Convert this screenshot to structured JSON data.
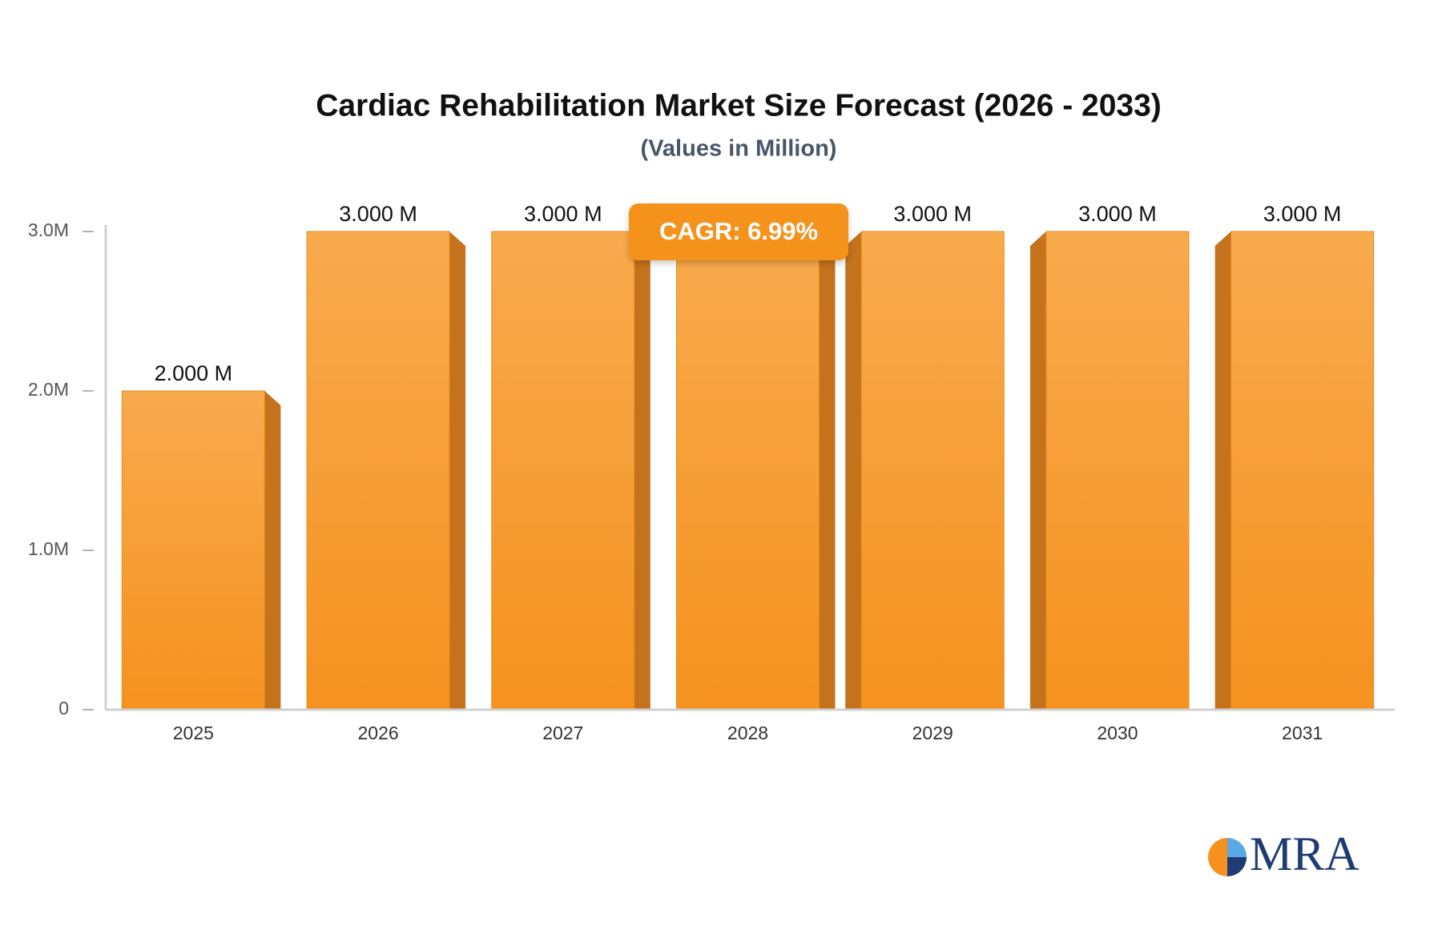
{
  "chart_data": {
    "type": "bar",
    "title": "Cardiac Rehabilitation Market Size Forecast (2026 - 2033)",
    "subtitle": "(Values in Million)",
    "categories": [
      "2025",
      "2026",
      "2027",
      "2028",
      "2029",
      "2030",
      "2031"
    ],
    "values": [
      2,
      3,
      3,
      3,
      3,
      3,
      3
    ],
    "value_labels": [
      "2.000 M",
      "3.000 M",
      "3.000 M",
      null,
      "3.000 M",
      "3.000 M",
      "3.000 M"
    ],
    "color": "#f7a03a",
    "ylim": [
      0,
      3
    ],
    "yticks": [
      0,
      {
        "value": 1,
        "label": "1.0M"
      },
      {
        "value": 2,
        "label": "2.0M"
      },
      {
        "value": 3,
        "label": "3.0M"
      }
    ],
    "annotation": "CAGR: 6.99%",
    "logo": "MRA"
  }
}
